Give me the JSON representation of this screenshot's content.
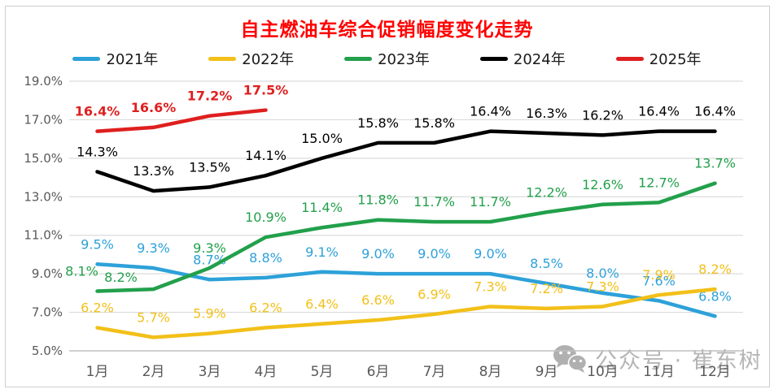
{
  "title": "自主燃油车综合促销幅度变化走势",
  "watermark": {
    "icon": "wechat-icon",
    "text": "公众号 · 崔东树"
  },
  "chart_data": {
    "type": "line",
    "title": "自主燃油车综合促销幅度变化走势",
    "categories": [
      "1月",
      "2月",
      "3月",
      "4月",
      "5月",
      "6月",
      "7月",
      "8月",
      "9月",
      "10月",
      "11月",
      "12月"
    ],
    "y_ticks": [
      "19.0%",
      "17.0%",
      "15.0%",
      "13.0%",
      "11.0%",
      "9.0%",
      "7.0%",
      "5.0%"
    ],
    "ylim": [
      5.0,
      19.0
    ],
    "y_unit": "%",
    "grid": true,
    "legend_position": "top",
    "data_labels": true,
    "colors": {
      "grid": "#dcdcdc",
      "axis": "#bfbfbf",
      "tick_text": "#595959",
      "title": "#ff0000",
      "watermark": "#b5b5b5"
    },
    "series": [
      {
        "name": "2021年",
        "color": "#2da1d9",
        "bold_labels": false,
        "values": [
          9.5,
          9.3,
          8.7,
          8.8,
          9.1,
          9.0,
          9.0,
          9.0,
          8.5,
          8.0,
          7.6,
          6.8
        ]
      },
      {
        "name": "2022年",
        "color": "#f2c019",
        "bold_labels": false,
        "values": [
          6.2,
          5.7,
          5.9,
          6.2,
          6.4,
          6.6,
          6.9,
          7.3,
          7.2,
          7.3,
          7.9,
          8.2
        ]
      },
      {
        "name": "2023年",
        "color": "#22a04b",
        "bold_labels": false,
        "values": [
          8.1,
          8.2,
          9.3,
          10.9,
          11.4,
          11.8,
          11.7,
          11.7,
          12.2,
          12.6,
          12.7,
          13.7
        ]
      },
      {
        "name": "2024年",
        "color": "#000000",
        "bold_labels": false,
        "values": [
          14.3,
          13.3,
          13.5,
          14.1,
          15.0,
          15.8,
          15.8,
          16.4,
          16.3,
          16.2,
          16.4,
          16.4
        ]
      },
      {
        "name": "2025年",
        "color": "#df1f1f",
        "bold_labels": true,
        "values": [
          16.4,
          16.6,
          17.2,
          17.5
        ]
      }
    ]
  }
}
